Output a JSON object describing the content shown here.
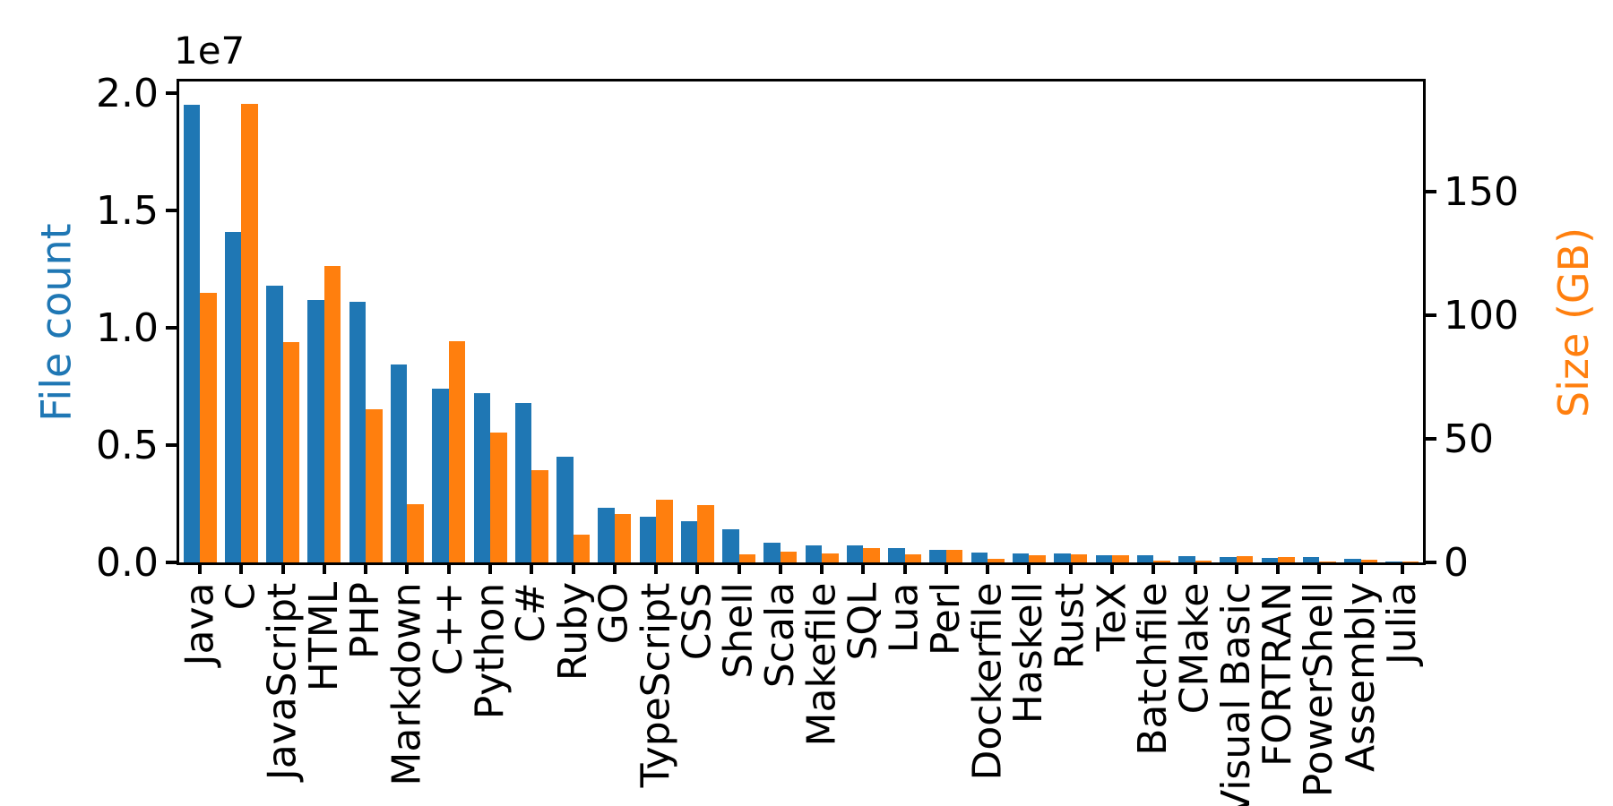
{
  "chart_data": {
    "type": "bar",
    "title": "",
    "xlabel": "",
    "ylabel": "File count",
    "ylabel_right": "Size (GB)",
    "categories": [
      "Java",
      "C",
      "JavaScript",
      "HTML",
      "PHP",
      "Markdown",
      "C++",
      "Python",
      "C#",
      "Ruby",
      "GO",
      "TypeScript",
      "CSS",
      "Shell",
      "Scala",
      "Makefile",
      "SQL",
      "Lua",
      "Perl",
      "Dockerfile",
      "Haskell",
      "Rust",
      "TeX",
      "Batchfile",
      "CMake",
      "Visual Basic",
      "FORTRAN",
      "PowerShell",
      "Assembly",
      "Julia"
    ],
    "series": [
      {
        "name": "File count",
        "axis": "left",
        "color": "#1f77b4",
        "values": [
          19500000,
          14100000,
          11800000,
          11200000,
          11100000,
          8450000,
          7400000,
          7200000,
          6800000,
          4520000,
          2320000,
          1940000,
          1750000,
          1410000,
          840000,
          720000,
          720000,
          610000,
          530000,
          420000,
          380000,
          380000,
          310000,
          300000,
          250000,
          230000,
          200000,
          220000,
          150000,
          50000
        ]
      },
      {
        "name": "Size (GB)",
        "axis": "right",
        "color": "#ff7f0e",
        "values": [
          109.0,
          185.5,
          89.0,
          120.0,
          62.0,
          23.6,
          89.5,
          52.5,
          37.3,
          11.2,
          19.6,
          25.4,
          23.2,
          3.4,
          4.3,
          3.6,
          5.8,
          3.3,
          5.1,
          1.4,
          2.9,
          3.2,
          2.9,
          0.7,
          0.6,
          2.5,
          2.2,
          0.5,
          1.1,
          0.4
        ]
      }
    ],
    "left_axis": {
      "label": "File count",
      "color": "#1f77b4",
      "offset_label": "1e7",
      "tick_values": [
        0,
        5000000,
        10000000,
        15000000,
        20000000
      ],
      "tick_labels": [
        "0.0",
        "0.5",
        "1.0",
        "1.5",
        "2.0"
      ],
      "ylim": [
        0,
        20500000
      ]
    },
    "right_axis": {
      "label": "Size (GB)",
      "color": "#ff7f0e",
      "tick_values": [
        0,
        50,
        100,
        150
      ],
      "tick_labels": [
        "0",
        "50",
        "100",
        "150"
      ],
      "ylim": [
        0,
        194.6
      ]
    },
    "x_tick_rotation_deg": 90,
    "grid": false,
    "legend": "none",
    "spine_color": "#000000",
    "background": "#ffffff"
  }
}
